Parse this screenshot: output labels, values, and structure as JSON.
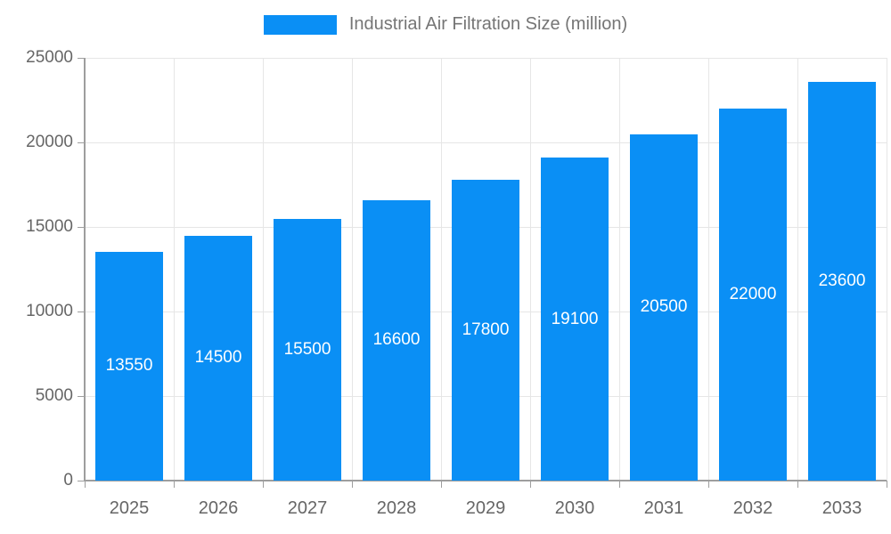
{
  "legend": {
    "label": "Industrial Air Filtration Size (million)"
  },
  "colors": {
    "bar": "#0a8ff5",
    "grid": "#e6e6e6",
    "axis": "#9e9e9e",
    "axis_label": "#666666",
    "legend_label": "#757575",
    "value_label": "#ffffff",
    "background": "#ffffff"
  },
  "chart_data": {
    "type": "bar",
    "title": "Industrial Air Filtration Size (million)",
    "categories": [
      "2025",
      "2026",
      "2027",
      "2028",
      "2029",
      "2030",
      "2031",
      "2032",
      "2033"
    ],
    "values": [
      13550,
      14500,
      15500,
      16600,
      17800,
      19100,
      20500,
      22000,
      23600
    ],
    "xlabel": "",
    "ylabel": "",
    "ylim": [
      0,
      25000
    ],
    "yticks": [
      0,
      5000,
      10000,
      15000,
      20000,
      25000
    ],
    "grid": "horizontal and vertical light-gray gridlines",
    "legend_position": "top-center",
    "value_labels": "inside bars, vertically centered, white"
  }
}
